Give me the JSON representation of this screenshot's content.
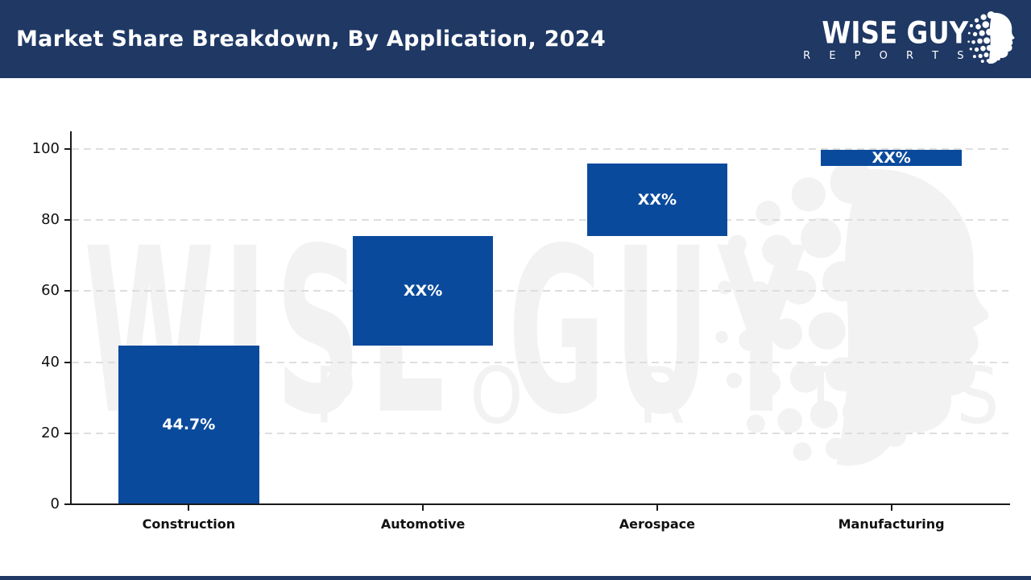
{
  "header": {
    "title": "Market Share Breakdown, By Application, 2024",
    "logo": {
      "line1": "WISE GUY",
      "line2": "R E P O R T S"
    }
  },
  "watermark": {
    "line1": "WISE GUY",
    "line2": "P O R T S"
  },
  "colors": {
    "header_bg": "#1f3864",
    "footer_bg": "#1f3864",
    "bar_blue": "#0a4a9c",
    "bar_label": "#ffffff",
    "watermark_gray": "#f2f2f2",
    "grid_gray": "#dedede",
    "axis_black": "#1a1a1a"
  },
  "chart_data": {
    "type": "bar",
    "subtype": "waterfall",
    "title": "Market Share Breakdown, By Application, 2024",
    "xlabel": "",
    "ylabel": "",
    "categories": [
      "Construction",
      "Automotive",
      "Aerospace",
      "Manufacturing"
    ],
    "segments": [
      {
        "category": "Construction",
        "start": 0,
        "end": 44.7,
        "label": "44.7%"
      },
      {
        "category": "Automotive",
        "start": 44.7,
        "end": 75.5,
        "label": "XX%"
      },
      {
        "category": "Aerospace",
        "start": 75.5,
        "end": 95.9,
        "label": "XX%"
      },
      {
        "category": "Manufacturing",
        "start": 95.3,
        "end": 99.8,
        "label": "XX%"
      }
    ],
    "yticks": [
      0,
      20,
      40,
      60,
      80,
      100
    ],
    "ylim": [
      0,
      105
    ],
    "bar_color": "#0a4a9c",
    "label_color": "#ffffff",
    "grid": "horizontal-dashed",
    "legend": "none"
  }
}
